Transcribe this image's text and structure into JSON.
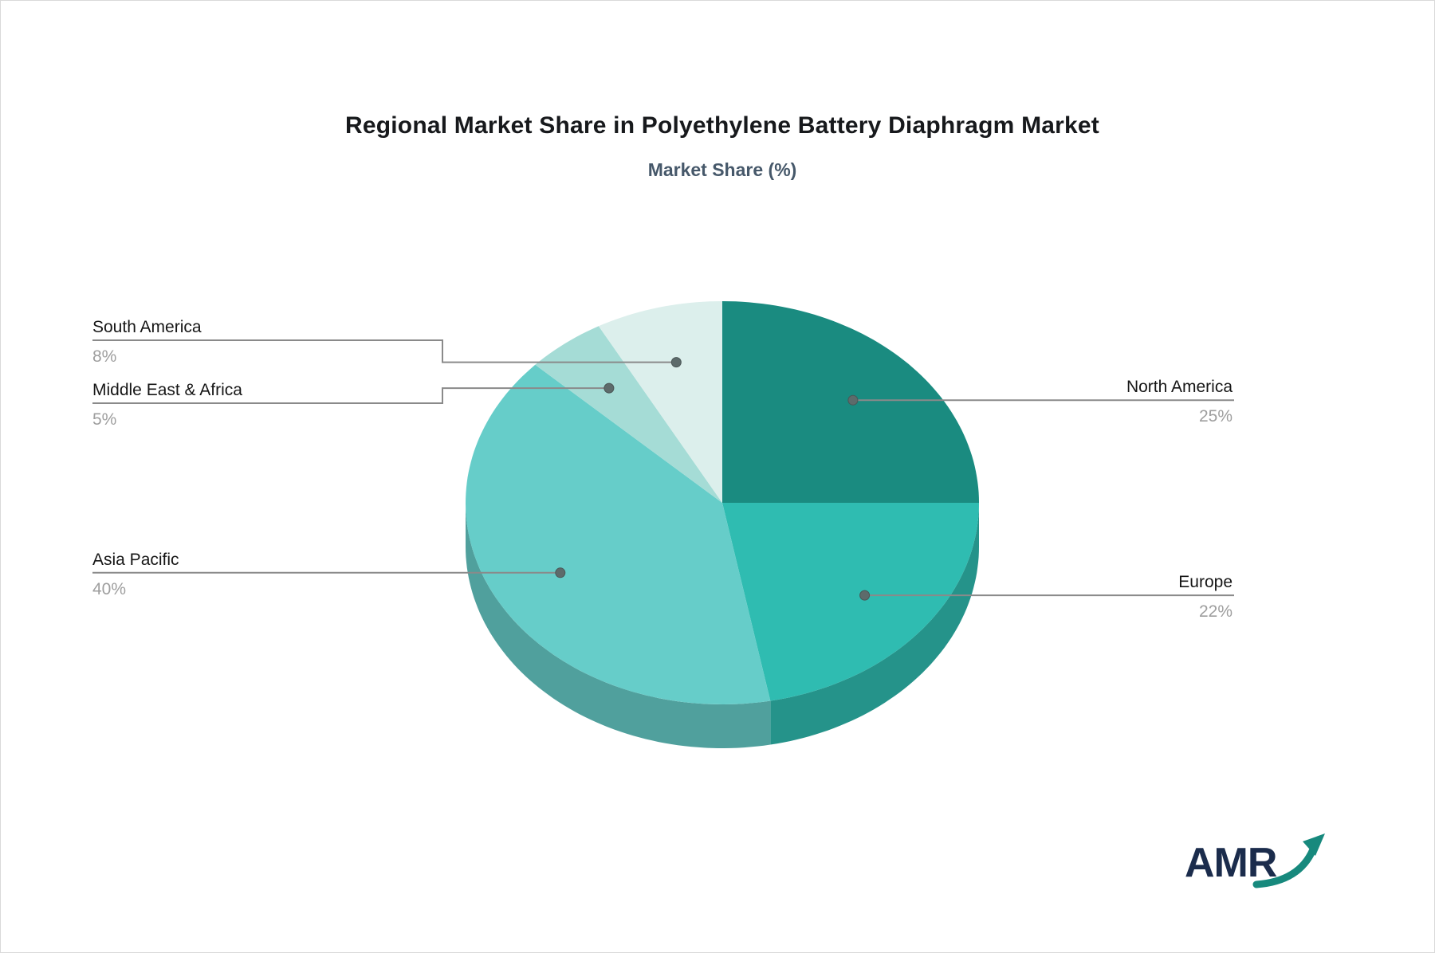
{
  "title": "Regional Market Share in Polyethylene Battery Diaphragm Market",
  "subtitle": "Market Share (%)",
  "logo": {
    "text": "AMR"
  },
  "chart_data": {
    "type": "pie",
    "style": "3d",
    "title": "Regional Market Share in Polyethylene Battery Diaphragm Market",
    "subtitle": "Market Share (%)",
    "unit": "%",
    "start_angle_deg": 0,
    "direction": "clockwise",
    "legend_position": "callout-labels",
    "slices": [
      {
        "label": "North America",
        "value": 25,
        "display": "25%",
        "color": "#1A8B80",
        "label_side": "right"
      },
      {
        "label": "Europe",
        "value": 22,
        "display": "22%",
        "color": "#2FBCB1",
        "label_side": "right"
      },
      {
        "label": "Asia Pacific",
        "value": 40,
        "display": "40%",
        "color": "#66CDC9",
        "label_side": "left"
      },
      {
        "label": "Middle East & Africa",
        "value": 5,
        "display": "5%",
        "color": "#A5DCD6",
        "label_side": "left"
      },
      {
        "label": "South America",
        "value": 8,
        "display": "8%",
        "color": "#DCEFEC",
        "label_side": "left"
      }
    ]
  },
  "colors": {
    "background": "#FFFFFF",
    "title": "#17191C",
    "subtitle": "#46586A",
    "label_text": "#161616",
    "value_text": "#9E9E9E",
    "connector_line": "#8A8A8A",
    "connector_dot": "#5D6B6B",
    "logo_navy": "#1B2C4C",
    "logo_teal": "#17897D"
  }
}
